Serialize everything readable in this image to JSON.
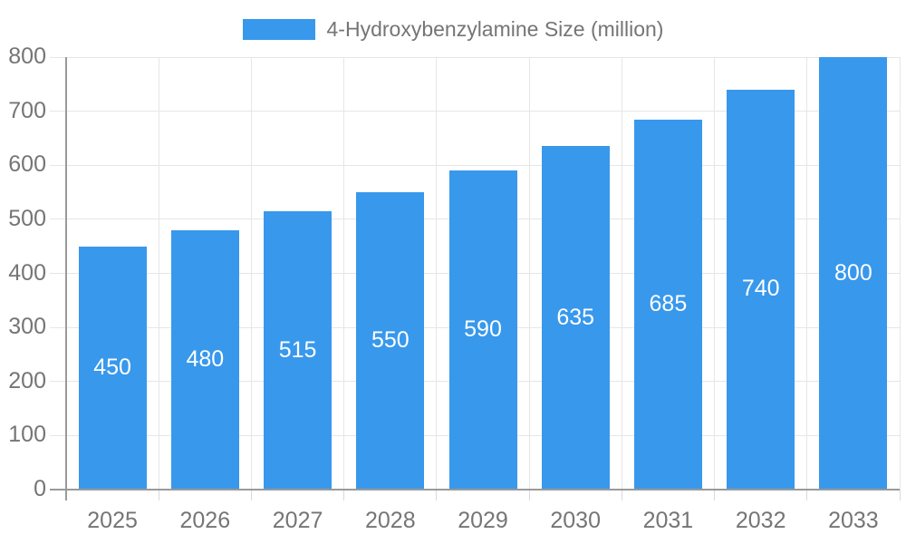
{
  "chart_data": {
    "type": "bar",
    "title": "",
    "legend": "4-Hydroxybenzylamine Size (million)",
    "legend_position": "top",
    "categories": [
      "2025",
      "2026",
      "2027",
      "2028",
      "2029",
      "2030",
      "2031",
      "2032",
      "2033"
    ],
    "values": [
      450,
      480,
      515,
      550,
      590,
      635,
      685,
      740,
      800
    ],
    "xlabel": "",
    "ylabel": "",
    "ylim": [
      0,
      800
    ],
    "ytick_step": 100,
    "yticks": [
      0,
      100,
      200,
      300,
      400,
      500,
      600,
      700,
      800
    ],
    "grid": true,
    "bar_labels_inside": true,
    "colors": {
      "bar": "#3898ec",
      "bar_label": "#ffffff",
      "axis": "#9a9a9a",
      "grid": "#e6e6e6",
      "tick": "#d9d9d9",
      "text": "#757575",
      "background": "#ffffff"
    }
  }
}
